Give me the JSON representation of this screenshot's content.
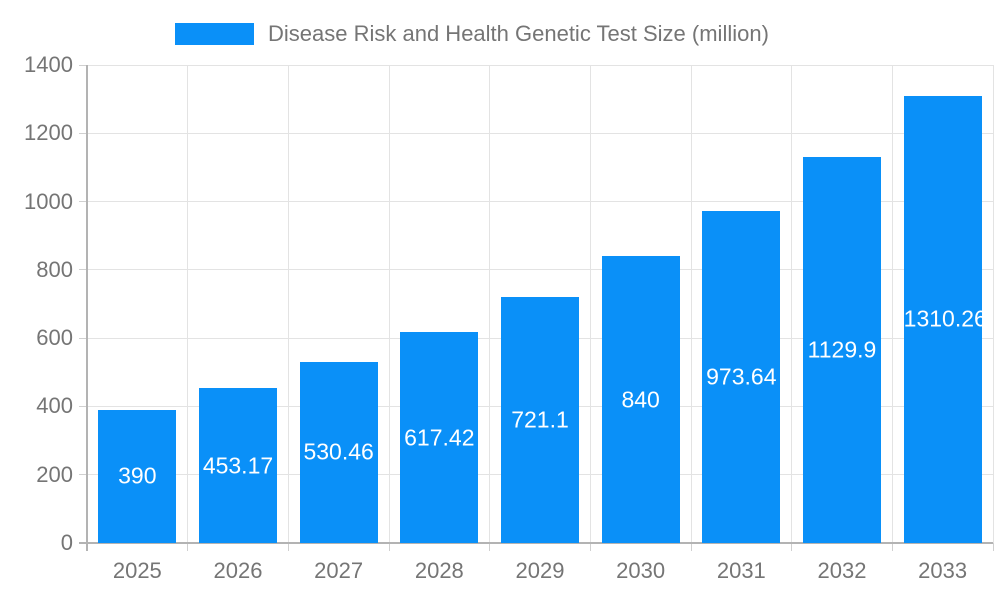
{
  "chart_data": {
    "type": "bar",
    "title": "Disease Risk and Health Genetic Test Size (million)",
    "categories": [
      "2025",
      "2026",
      "2027",
      "2028",
      "2029",
      "2030",
      "2031",
      "2032",
      "2033"
    ],
    "values": [
      390,
      453.17,
      530.46,
      617.42,
      721.1,
      840,
      973.64,
      1129.9,
      1310.26
    ],
    "value_labels": [
      "390",
      "453.17",
      "530.46",
      "617.42",
      "721.1",
      "840",
      "973.64",
      "1129.9",
      "1310.26"
    ],
    "xlabel": "",
    "ylabel": "",
    "ylim": [
      0,
      1400
    ],
    "yticks": [
      0,
      200,
      400,
      600,
      800,
      1000,
      1200,
      1400
    ],
    "grid": true,
    "legend_position": "top",
    "colors": {
      "bar": "#0a90f8",
      "bar_value_text": "#ffffff",
      "axis_text": "#757575",
      "grid_line": "#e3e3e3",
      "tick_mark": "#d0d0d0",
      "axis_line": "#b3b3b3",
      "background": "#ffffff"
    }
  }
}
